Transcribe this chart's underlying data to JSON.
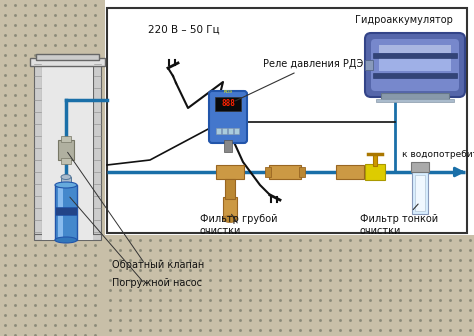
{
  "bg_color": "#ffffff",
  "pipe_color": "#1a6fa8",
  "wire_color": "#111111",
  "ground_color": "#c8bfa8",
  "ground_dot_color": "#999980",
  "indoor_bg": "#f8f8f8",
  "indoor_border": "#333333",
  "labels": {
    "voltage": "220 В – 50 Гц",
    "relay": "Реле давления РДЭ",
    "accumulator": "Гидроаккумулятор",
    "consumers": "к водопотребителям",
    "coarse_filter": "Фильтр грубой\nочистки",
    "fine_filter": "Фильтр тонкой\nочистки",
    "check_valve": "Обратный клапан",
    "pump": "Погружной насос"
  },
  "fig_width": 4.74,
  "fig_height": 3.36,
  "dpi": 100
}
